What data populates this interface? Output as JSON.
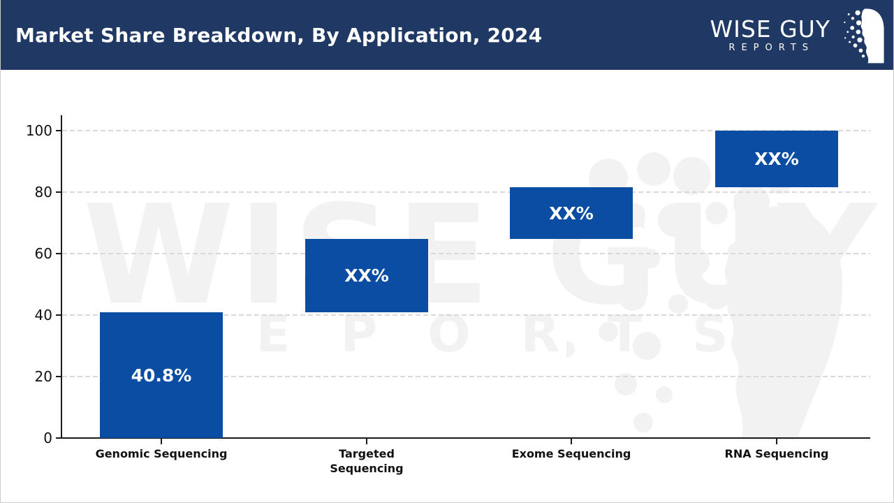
{
  "header": {
    "title": "Market Share Breakdown, By Application, 2024",
    "logo": {
      "name": "WISE GUY",
      "subname": "REPORTS"
    }
  },
  "watermark": {
    "line1": "WISE GUY",
    "line2": "REPORTS"
  },
  "chart_data": {
    "type": "bar",
    "subtype": "waterfall",
    "title": "Market Share Breakdown, By Application, 2024",
    "categories": [
      "Genomic Sequencing",
      "Targeted Sequencing",
      "Exome Sequencing",
      "RNA Sequencing"
    ],
    "category_label_lines": [
      [
        "Genomic Sequencing"
      ],
      [
        "Targeted",
        "Sequencing"
      ],
      [
        "Exome Sequencing"
      ],
      [
        "RNA Sequencing"
      ]
    ],
    "segments": [
      {
        "category": "Genomic Sequencing",
        "start": 0,
        "end": 40.8,
        "label": "40.8%"
      },
      {
        "category": "Targeted Sequencing",
        "start": 40.8,
        "end": 64.7,
        "label": "XX%"
      },
      {
        "category": "Exome Sequencing",
        "start": 64.7,
        "end": 81.6,
        "label": "XX%"
      },
      {
        "category": "RNA Sequencing",
        "start": 81.6,
        "end": 100,
        "label": "XX%"
      }
    ],
    "ylim": [
      0,
      100
    ],
    "yticks": [
      0,
      20,
      40,
      60,
      80,
      100
    ],
    "xlabel": "",
    "ylabel": "",
    "grid": {
      "horizontal": true,
      "style": "dashed"
    },
    "legend": null,
    "colors": {
      "bar": "#0b4da2",
      "grid": "#d9d9d9",
      "axis": "#1a1a1a",
      "header_bg": "#1f3864",
      "bar_label_text": "#ffffff",
      "watermark": "#f2f2f2"
    }
  }
}
